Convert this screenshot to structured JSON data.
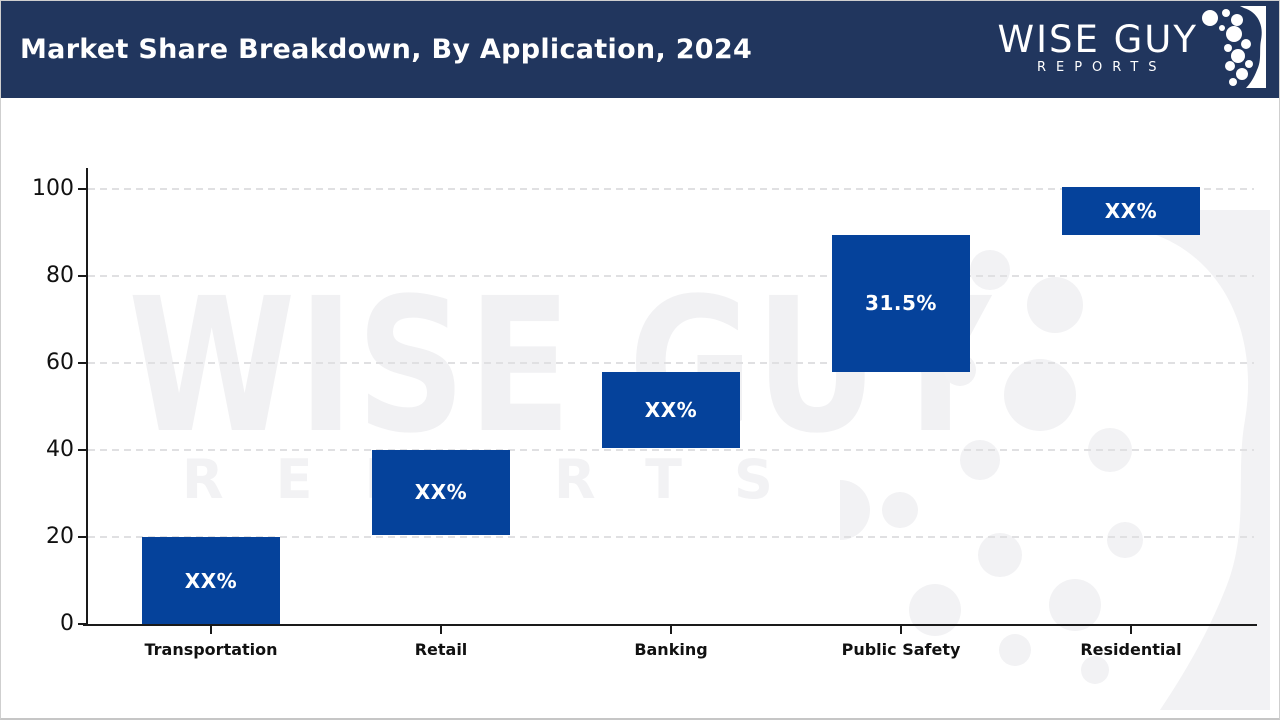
{
  "header": {
    "title": "Market Share Breakdown, By Application, 2024",
    "bg_color": "#21365e",
    "logo": {
      "line1": "WISE GUY",
      "line2": "REPORTS"
    }
  },
  "watermark": {
    "line1": "WISE GUY",
    "line2": "REPORTS"
  },
  "chart_data": {
    "type": "bar",
    "subtype": "waterfall-floating-bars",
    "title": "Market Share Breakdown, By Application, 2024",
    "categories": [
      "Transportation",
      "Retail",
      "Banking",
      "Public Safety",
      "Residential"
    ],
    "segments": [
      {
        "category": "Transportation",
        "start": 0,
        "end": 20,
        "label": "XX%"
      },
      {
        "category": "Retail",
        "start": 20.5,
        "end": 40,
        "label": "XX%"
      },
      {
        "category": "Banking",
        "start": 40.5,
        "end": 58,
        "label": "XX%"
      },
      {
        "category": "Public Safety",
        "start": 58,
        "end": 89.5,
        "label": "31.5%"
      },
      {
        "category": "Residential",
        "start": 89.5,
        "end": 100.5,
        "label": "XX%"
      }
    ],
    "xlabel": "",
    "ylabel": "",
    "ylim": [
      0,
      105
    ],
    "yticks": [
      0,
      20,
      40,
      60,
      80,
      100
    ],
    "grid": "horizontal-dashed",
    "legend": "none",
    "bar_color": "#05429b",
    "bar_label_color": "#ffffff",
    "axis_color": "#1a1a1a",
    "gridline_color": "#e0e0e2"
  }
}
